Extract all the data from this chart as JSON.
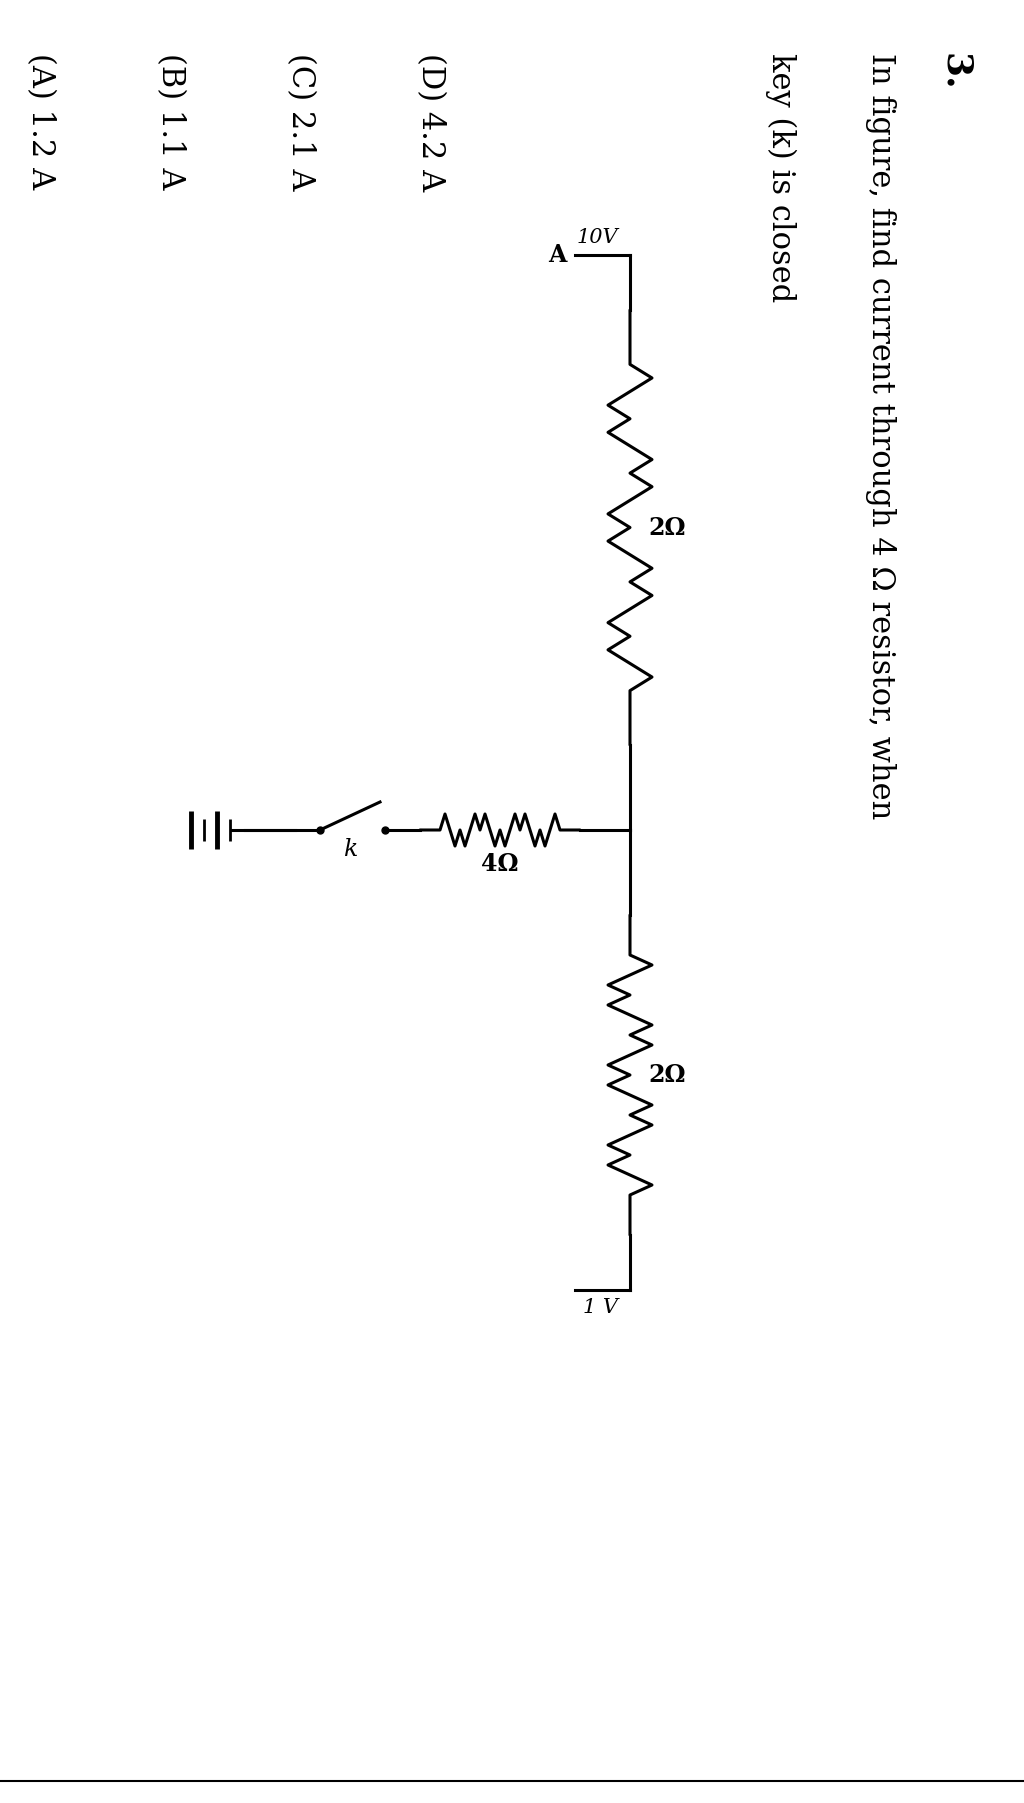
{
  "bg_color": "#ffffff",
  "text_color": "#000000",
  "question_number": "3.",
  "question_text_line1": "In figure, find current through 4 Ω resistor, when",
  "question_text_line2": "key (k) is closed",
  "options": [
    "(A) 1.2 A",
    "(B) 1.1 A",
    "(C) 2.1 A",
    "(D) 4.2 A"
  ],
  "circuit": {
    "top_voltage": "10V",
    "bottom_voltage": "1 V",
    "top_resistor": "2Ω",
    "bottom_resistor": "2Ω",
    "middle_resistor": "4Ω",
    "key_label": "k",
    "node_A_label": "A"
  },
  "fig_width": 10.24,
  "fig_height": 18.03,
  "dpi": 100
}
